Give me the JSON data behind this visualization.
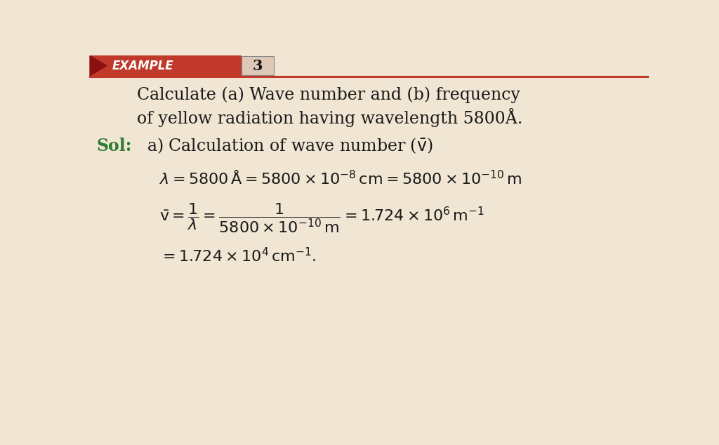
{
  "bg_color": "#f0e6d3",
  "header_bg": "#c0392b",
  "header_text_color": "#ffffff",
  "header_label": "EXAMPLE",
  "header_number": "3",
  "number_bg": "#ddc8b8",
  "line_color": "#c0392b",
  "sol_color": "#2e7d32",
  "title_line1": "Calculate (a) Wave number and (b) frequency",
  "title_line2": "of yellow radiation having wavelength 5800Å.",
  "sol_label": "Sol:",
  "sol_line": "a) Calculation of wave number (̄v)",
  "eq1": "$\\lambda = 5800\\,\\mathrm{\\AA} = 5800 \\times 10^{-8}\\,\\mathrm{cm} = 5800 \\times 10^{-10}\\,\\mathrm{m}$",
  "eq2": "$\\bar{\\mathrm{v}} = \\dfrac{1}{\\lambda} = \\dfrac{1}{5800 \\times 10^{-10}\\,\\mathrm{m}} = 1.724 \\times 10^{6}\\,\\mathrm{m}^{-1}$",
  "eq3": "$= 1.724 \\times 10^{4}\\,\\mathrm{cm}^{-1}.$"
}
